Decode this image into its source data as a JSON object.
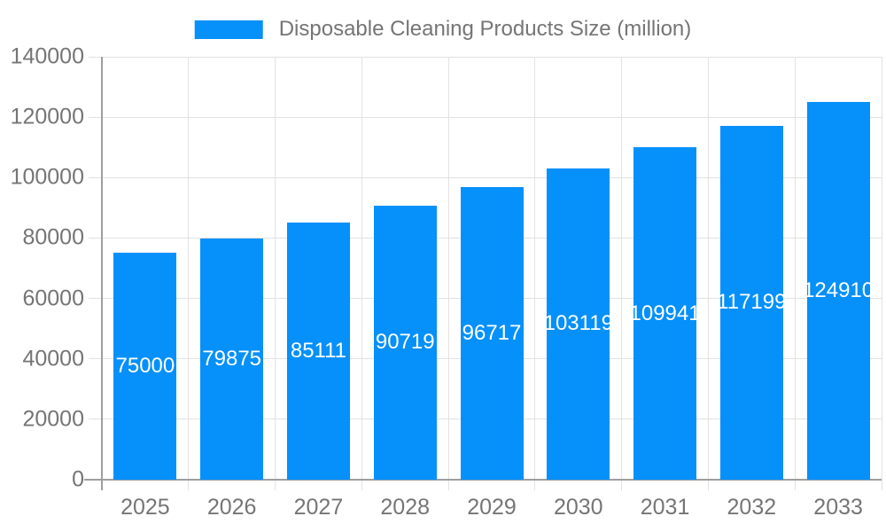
{
  "legend": {
    "label": "Disposable Cleaning Products Size (million)"
  },
  "chart_data": {
    "type": "bar",
    "title": "Disposable Cleaning Products Size (million)",
    "categories": [
      "2025",
      "2026",
      "2027",
      "2028",
      "2029",
      "2030",
      "2031",
      "2032",
      "2033"
    ],
    "values": [
      75000,
      79875,
      85111,
      90719,
      96717,
      103119,
      109941,
      117199,
      124910
    ],
    "value_labels": [
      "75000",
      "79875",
      "85111",
      "90719",
      "96717",
      "103119",
      "109941",
      "117199",
      "124910"
    ],
    "xlabel": "",
    "ylabel": "",
    "ylim": [
      0,
      140000
    ],
    "ytick_step": 20000,
    "y_tick_labels": [
      "0",
      "20000",
      "40000",
      "60000",
      "80000",
      "100000",
      "120000",
      "140000"
    ],
    "grid": true,
    "legend_position": "top",
    "colors": {
      "bar": "#0590fa",
      "value_label": "#ffffff",
      "axis_text": "#757575",
      "gridline": "#e2e2e2",
      "axis_line": "#9e9e9e",
      "background": "#ffffff"
    }
  }
}
